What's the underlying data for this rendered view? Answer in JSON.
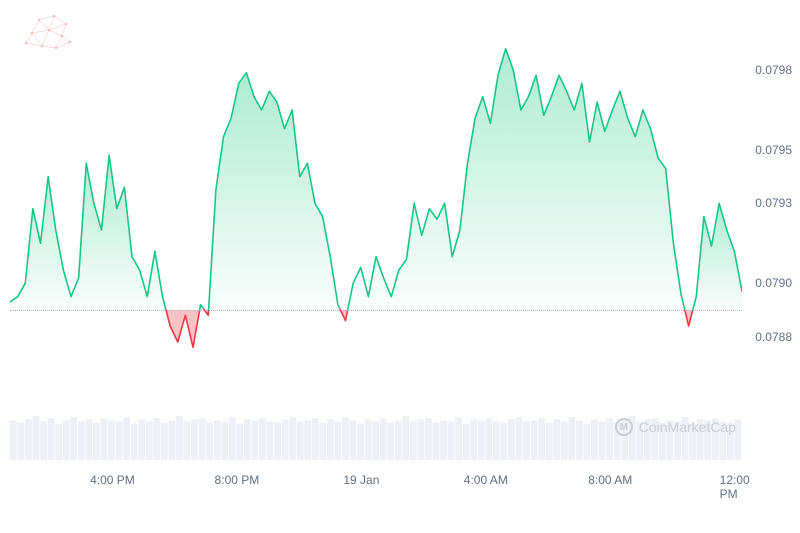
{
  "chart": {
    "type": "area",
    "baseline_value": 0.0789,
    "ylim": [
      0.0786,
      0.07995
    ],
    "yticks": [
      {
        "value": 0.0788,
        "label": "0.0788"
      },
      {
        "value": 0.079,
        "label": "0.0790"
      },
      {
        "value": 0.0793,
        "label": "0.0793"
      },
      {
        "value": 0.0795,
        "label": "0.0795"
      },
      {
        "value": 0.0798,
        "label": "0.0798"
      }
    ],
    "xticks": [
      {
        "pos": 0.14,
        "label": "4:00 PM"
      },
      {
        "pos": 0.31,
        "label": "8:00 PM"
      },
      {
        "pos": 0.48,
        "label": "19 Jan"
      },
      {
        "pos": 0.65,
        "label": "4:00 AM"
      },
      {
        "pos": 0.82,
        "label": "8:00 AM"
      },
      {
        "pos": 0.99,
        "label": "12:00 PM"
      }
    ],
    "series": [
      0.07893,
      0.07895,
      0.079,
      0.07928,
      0.07915,
      0.0794,
      0.0792,
      0.07905,
      0.07895,
      0.07902,
      0.07945,
      0.0793,
      0.0792,
      0.07948,
      0.07928,
      0.07936,
      0.0791,
      0.07905,
      0.07895,
      0.07912,
      0.07895,
      0.07884,
      0.07878,
      0.07888,
      0.07876,
      0.07892,
      0.07888,
      0.07935,
      0.07955,
      0.07962,
      0.07975,
      0.07979,
      0.0797,
      0.07965,
      0.07972,
      0.07968,
      0.07958,
      0.07965,
      0.0794,
      0.07945,
      0.0793,
      0.07925,
      0.0791,
      0.07892,
      0.07886,
      0.079,
      0.07906,
      0.07895,
      0.0791,
      0.07902,
      0.07895,
      0.07905,
      0.07909,
      0.0793,
      0.07918,
      0.07928,
      0.07924,
      0.0793,
      0.0791,
      0.0792,
      0.07945,
      0.07962,
      0.0797,
      0.0796,
      0.07978,
      0.07988,
      0.0798,
      0.07965,
      0.0797,
      0.07978,
      0.07963,
      0.0797,
      0.07978,
      0.07972,
      0.07965,
      0.07975,
      0.07953,
      0.07968,
      0.07957,
      0.07965,
      0.07972,
      0.07962,
      0.07955,
      0.07965,
      0.07958,
      0.07947,
      0.07943,
      0.07915,
      0.07896,
      0.07884,
      0.07895,
      0.07925,
      0.07914,
      0.0793,
      0.0792,
      0.07912,
      0.07897
    ],
    "colors": {
      "up_stroke": "#16c784",
      "up_fill_top": "rgba(22,199,132,0.35)",
      "up_fill_bottom": "rgba(22,199,132,0.02)",
      "down_stroke": "#ea3943",
      "down_fill": "rgba(234,57,67,0.30)",
      "baseline": "#a8b0c3",
      "volume_fill": "#eef0f5",
      "axis_text": "#616e85",
      "background": "#ffffff",
      "watermark": "#c9cdd6"
    },
    "line_width": 1.6,
    "label_fontsize": 12
  },
  "volume": {
    "bars": [
      0.72,
      0.68,
      0.74,
      0.8,
      0.7,
      0.76,
      0.66,
      0.72,
      0.78,
      0.7,
      0.74,
      0.68,
      0.76,
      0.72,
      0.7,
      0.78,
      0.66,
      0.74,
      0.7,
      0.76,
      0.68,
      0.72,
      0.8,
      0.7,
      0.74,
      0.76,
      0.68,
      0.72,
      0.7,
      0.78,
      0.66,
      0.74,
      0.72,
      0.76,
      0.7,
      0.68,
      0.74,
      0.78,
      0.7,
      0.72,
      0.76,
      0.68,
      0.74,
      0.7,
      0.78,
      0.72,
      0.66,
      0.74,
      0.7,
      0.76,
      0.68,
      0.72,
      0.8,
      0.7,
      0.74,
      0.76,
      0.68,
      0.72,
      0.7,
      0.78,
      0.66,
      0.74,
      0.72,
      0.76,
      0.7,
      0.68,
      0.74,
      0.78,
      0.7,
      0.72,
      0.76,
      0.68,
      0.74,
      0.7,
      0.78,
      0.72,
      0.66,
      0.74,
      0.7,
      0.76,
      0.68,
      0.72,
      0.8,
      0.7,
      0.74,
      0.76,
      0.68,
      0.72,
      0.7,
      0.78,
      0.66,
      0.74,
      0.72,
      0.76,
      0.7,
      0.68,
      0.74
    ]
  },
  "watermark": {
    "text": "CoinMarketCap",
    "icon_letter": "M"
  }
}
